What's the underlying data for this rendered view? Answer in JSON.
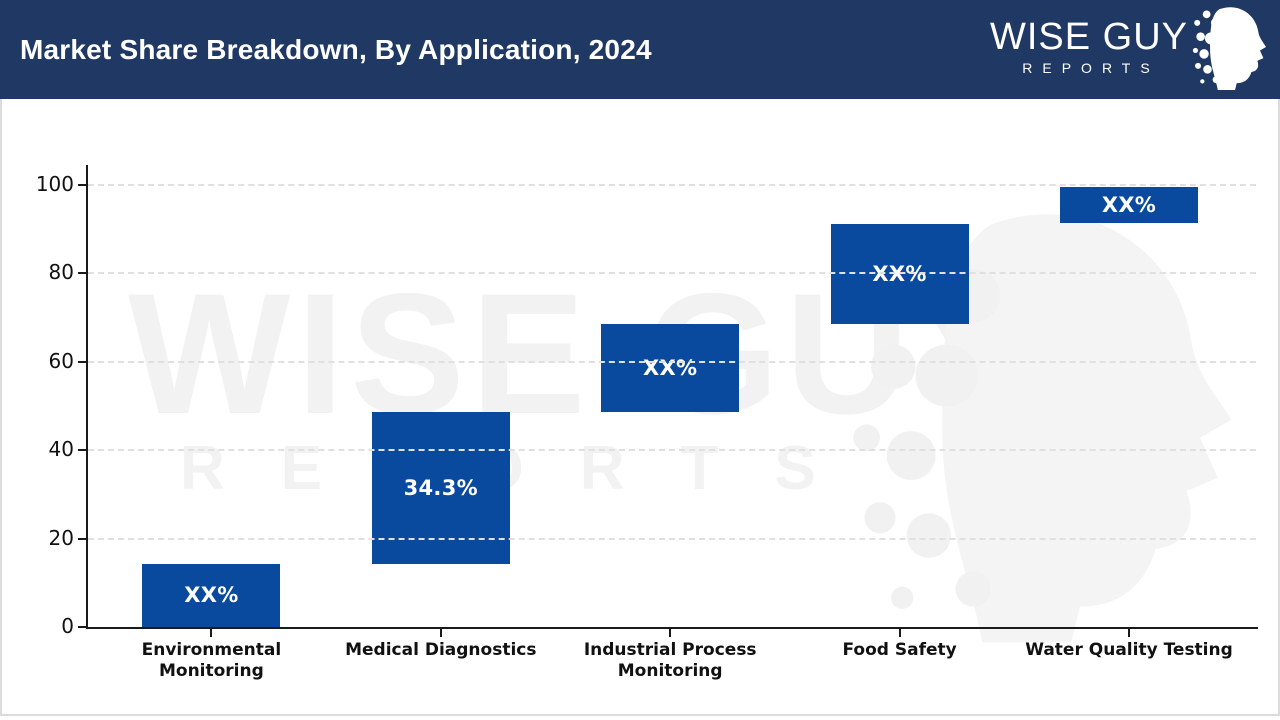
{
  "header": {
    "title": "Market Share Breakdown, By Application, 2024",
    "brand": {
      "line1": "WISE GUY",
      "line2": "REPORTS"
    }
  },
  "watermark": {
    "line1": "WISE GUY",
    "line2": "REPORTS"
  },
  "colors": {
    "header_bg": "#1f3864",
    "bar": "#0a4a9e",
    "grid": "#e0e0e0",
    "axis": "#1a1a1a",
    "bar_label_text": "#ffffff",
    "watermark": "#f2f2f2"
  },
  "chart_data": {
    "type": "bar",
    "subtype": "waterfall",
    "title": "Market Share Breakdown, By Application, 2024",
    "categories": [
      "Environmental Monitoring",
      "Medical Diagnostics",
      "Industrial Process Monitoring",
      "Food Safety",
      "Water Quality Testing"
    ],
    "segments": [
      {
        "label": "XX%",
        "start": 0,
        "end": 14.3,
        "value": 14.3
      },
      {
        "label": "34.3%",
        "start": 14.3,
        "end": 48.6,
        "value": 34.3
      },
      {
        "label": "XX%",
        "start": 48.6,
        "end": 68.5,
        "value": 19.9
      },
      {
        "label": "XX%",
        "start": 68.5,
        "end": 91.2,
        "value": 22.7
      },
      {
        "label": "XX%",
        "start": 91.3,
        "end": 99.5,
        "value": 8.2
      }
    ],
    "yticks": [
      0,
      20,
      40,
      60,
      80,
      100
    ],
    "ylim": [
      0,
      104
    ],
    "xlabel": "",
    "ylabel": "",
    "grid": "dashed-horizontal",
    "legend": "none"
  }
}
